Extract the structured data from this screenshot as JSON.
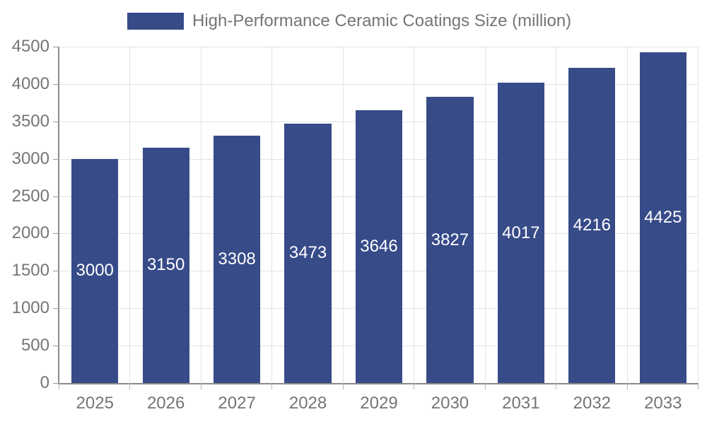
{
  "legend": {
    "label": "High-Performance Ceramic Coatings Size (million)"
  },
  "colors": {
    "bar": "#374B89",
    "axis_line": "#8a8a8a",
    "grid_line": "#e2e2e2",
    "tick_label": "#757575",
    "value_label": "#ffffff",
    "background": "#ffffff"
  },
  "chart_data": {
    "type": "bar",
    "title": "High-Performance Ceramic Coatings Size (million)",
    "categories": [
      "2025",
      "2026",
      "2027",
      "2028",
      "2029",
      "2030",
      "2031",
      "2032",
      "2033"
    ],
    "values": [
      3000,
      3150,
      3308,
      3473,
      3646,
      3827,
      4017,
      4216,
      4425
    ],
    "series": [
      {
        "name": "High-Performance Ceramic Coatings Size (million)",
        "values": [
          3000,
          3150,
          3308,
          3473,
          3646,
          3827,
          4017,
          4216,
          4425
        ]
      }
    ],
    "xlabel": "",
    "ylabel": "",
    "ylim": [
      0,
      4500
    ],
    "yticks": [
      0,
      500,
      1000,
      1500,
      2000,
      2500,
      3000,
      3500,
      4000,
      4500
    ],
    "grid": "on",
    "legend_position": "top",
    "value_label_position": "inside-center",
    "bar_width_fraction": 0.66
  }
}
